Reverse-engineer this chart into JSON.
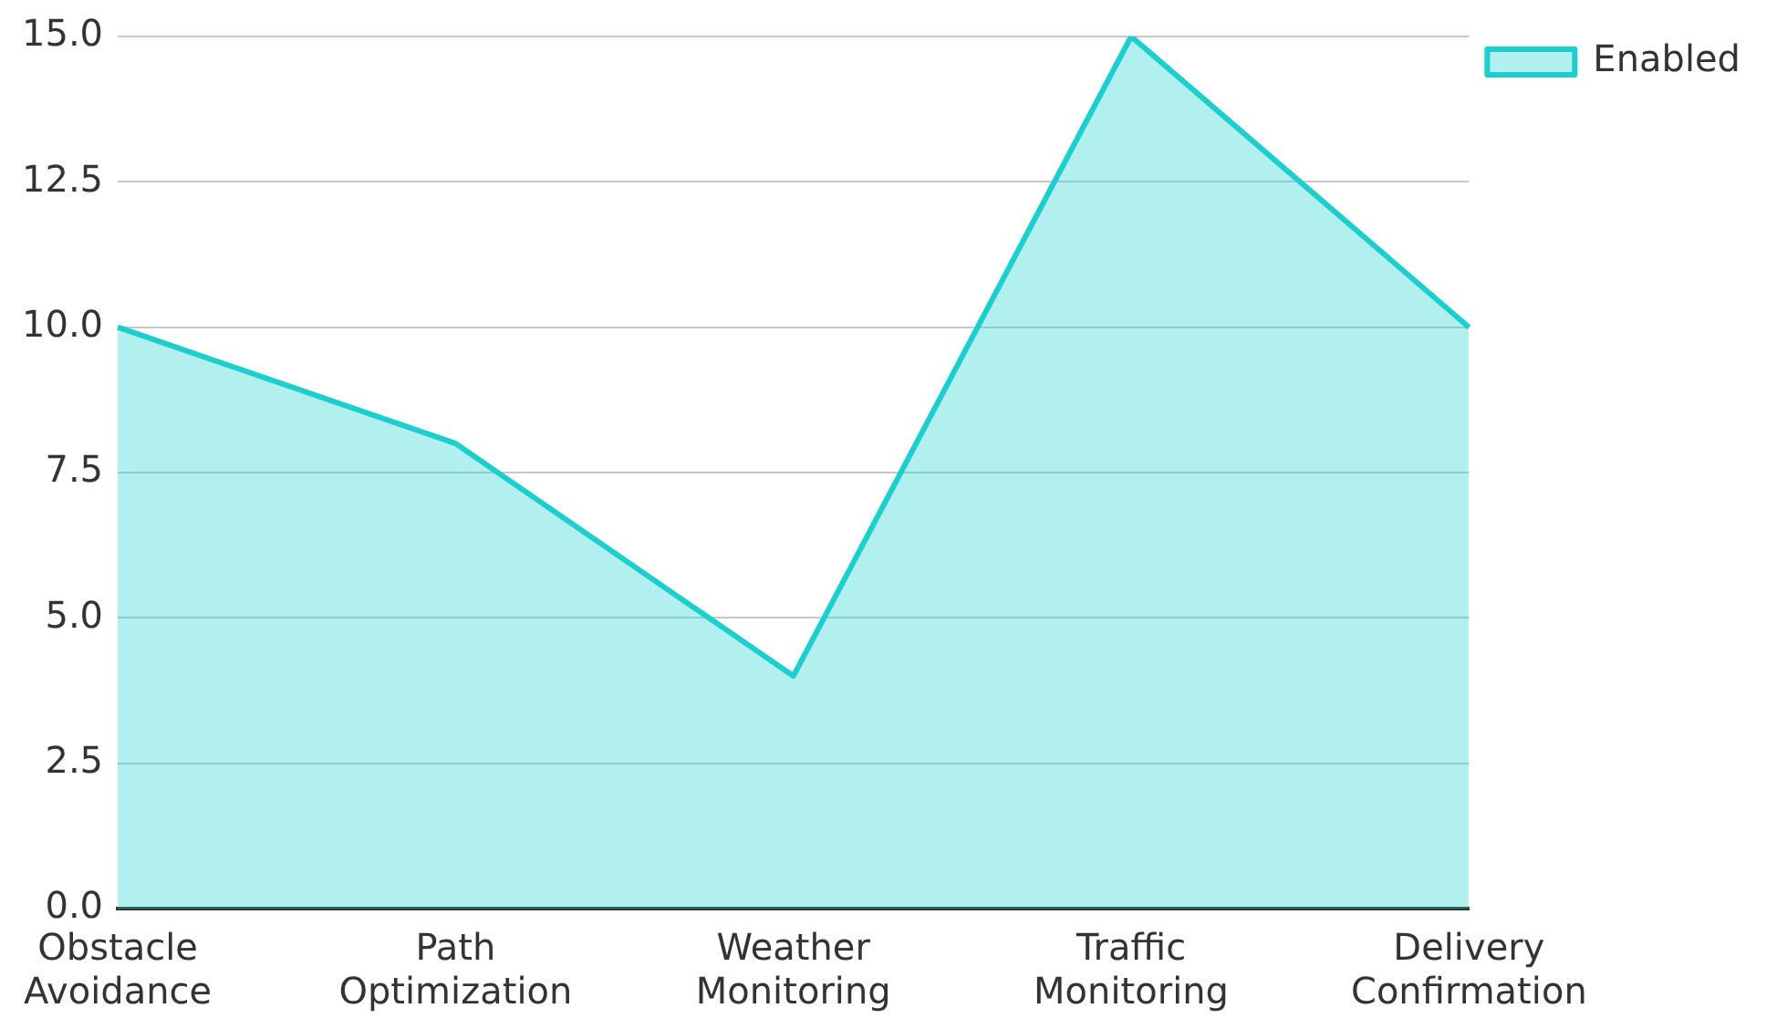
{
  "chart_data": {
    "type": "area",
    "categories": [
      "Obstacle Avoidance",
      "Path Optimization",
      "Weather Monitoring",
      "Traffic Monitoring",
      "Delivery Confirmation"
    ],
    "series": [
      {
        "name": "Enabled",
        "color": "#1ccfcf",
        "values": [
          10,
          8,
          4,
          15,
          10
        ]
      }
    ],
    "ylim": [
      0,
      15
    ],
    "yticks": [
      {
        "value": 0,
        "label": "0.0"
      },
      {
        "value": 2.5,
        "label": "2.5"
      },
      {
        "value": 5,
        "label": "5.0"
      },
      {
        "value": 7.5,
        "label": "7.5"
      },
      {
        "value": 10,
        "label": "10.0"
      },
      {
        "value": 12.5,
        "label": "12.5"
      },
      {
        "value": 15,
        "label": "15.0"
      }
    ],
    "grid": "y",
    "legend": "top right"
  }
}
